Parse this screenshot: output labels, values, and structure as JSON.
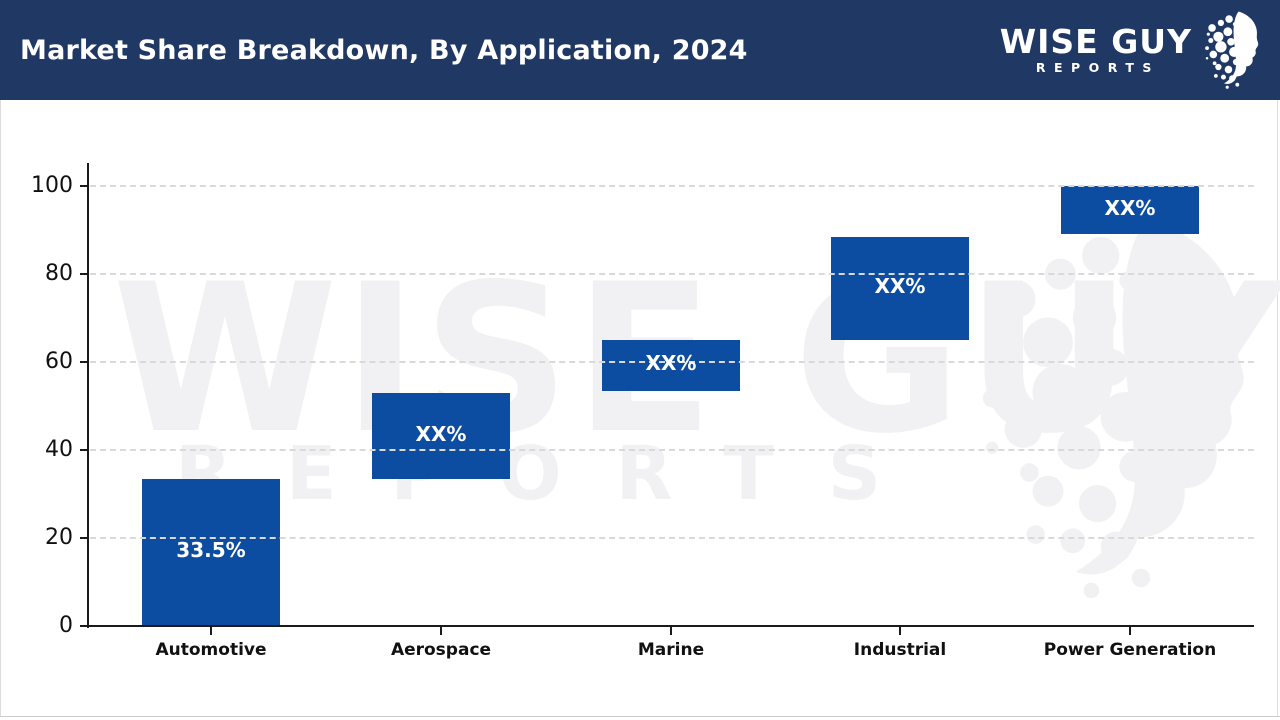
{
  "header": {
    "title": "Market Share Breakdown, By Application, 2024",
    "logo": {
      "line1": "WISE GUY",
      "line2": "REPORTS"
    }
  },
  "watermark": {
    "line1": "WISE GUY",
    "line2": "REPORTS"
  },
  "chart_data": {
    "type": "bar",
    "subtype": "waterfall",
    "title": "Market Share Breakdown, By Application, 2024",
    "categories": [
      "Automotive",
      "Aerospace",
      "Marine",
      "Industrial",
      "Power Generation"
    ],
    "series": [
      {
        "name": "Market Share",
        "segments": [
          {
            "category": "Automotive",
            "start": 0,
            "end": 33.5,
            "label": "33.5%"
          },
          {
            "category": "Aerospace",
            "start": 33.5,
            "end": 53,
            "label": "XX%"
          },
          {
            "category": "Marine",
            "start": 53.5,
            "end": 65,
            "label": "XX%"
          },
          {
            "category": "Industrial",
            "start": 65,
            "end": 88.5,
            "label": "XX%"
          },
          {
            "category": "Power Generation",
            "start": 89,
            "end": 100,
            "label": "XX%"
          }
        ]
      }
    ],
    "xlabel": "",
    "ylabel": "",
    "ylim": [
      0,
      105
    ],
    "yticks": [
      0,
      20,
      40,
      60,
      80,
      100
    ],
    "grid": "horizontal dashed, drawn over bars",
    "legend": "none"
  },
  "colors": {
    "header_bg": "#203864",
    "bar": "#0d4da1",
    "bar_label": "#ffffff",
    "watermark": "#f1f1f4",
    "axis": "#1a1a1a",
    "grid": "#d9d9d9"
  }
}
